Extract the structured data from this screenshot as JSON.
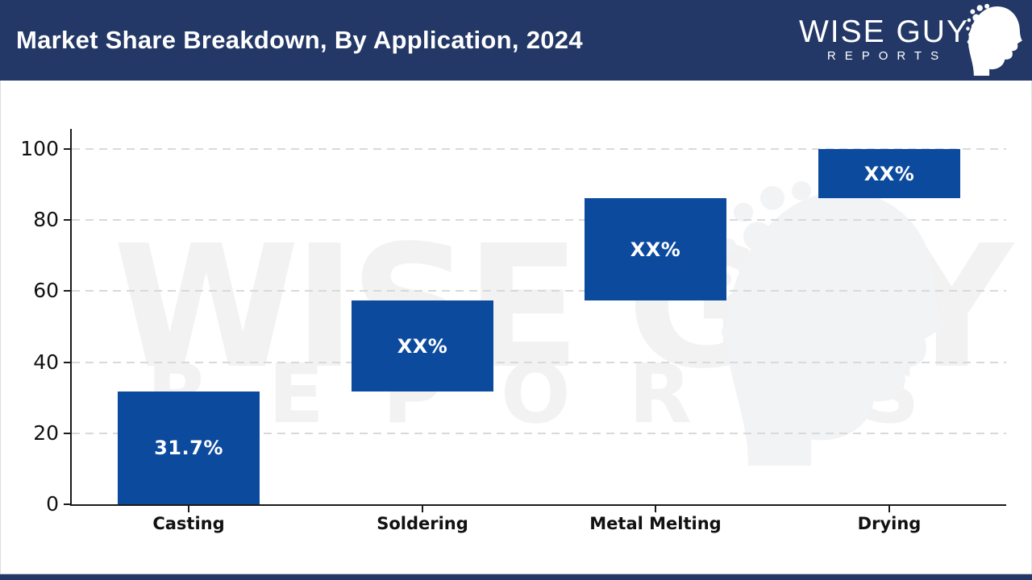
{
  "header": {
    "title": "Market Share Breakdown, By Application, 2024",
    "logo": {
      "wordmark": "WISE GUY",
      "subtext": "REPORTS"
    }
  },
  "watermark": {
    "line1": "WISE GUY",
    "line2": "REPORTS"
  },
  "colors": {
    "header_bg": "#233866",
    "footer_bg": "#233866",
    "bar_blue": "#0C4A9E",
    "watermark_gray": "#F2F2F2",
    "gridline_gray": "#D9D9D9",
    "axis_black": "#1A1A1A"
  },
  "chart_data": {
    "type": "bar",
    "subtype": "floating-waterfall",
    "title": "Market Share Breakdown, By Application, 2024",
    "categories": [
      "Casting",
      "Soldering",
      "Metal Melting",
      "Drying"
    ],
    "segments": [
      {
        "category": "Casting",
        "start": 0,
        "end": 31.7,
        "label": "31.7%"
      },
      {
        "category": "Soldering",
        "start": 31.7,
        "end": 57.4,
        "label": "XX%"
      },
      {
        "category": "Metal Melting",
        "start": 57.4,
        "end": 86.1,
        "label": "XX%"
      },
      {
        "category": "Drying",
        "start": 86.1,
        "end": 100,
        "label": "XX%"
      }
    ],
    "ylim": [
      0,
      105
    ],
    "yticks": [
      0,
      20,
      40,
      60,
      80,
      100
    ],
    "xlabel": "",
    "ylabel": "",
    "grid": {
      "horizontal": true,
      "style": "dashed"
    },
    "legend": "none",
    "bar_color": "#0C4A9E",
    "bar_label_color": "#FFFFFF"
  }
}
